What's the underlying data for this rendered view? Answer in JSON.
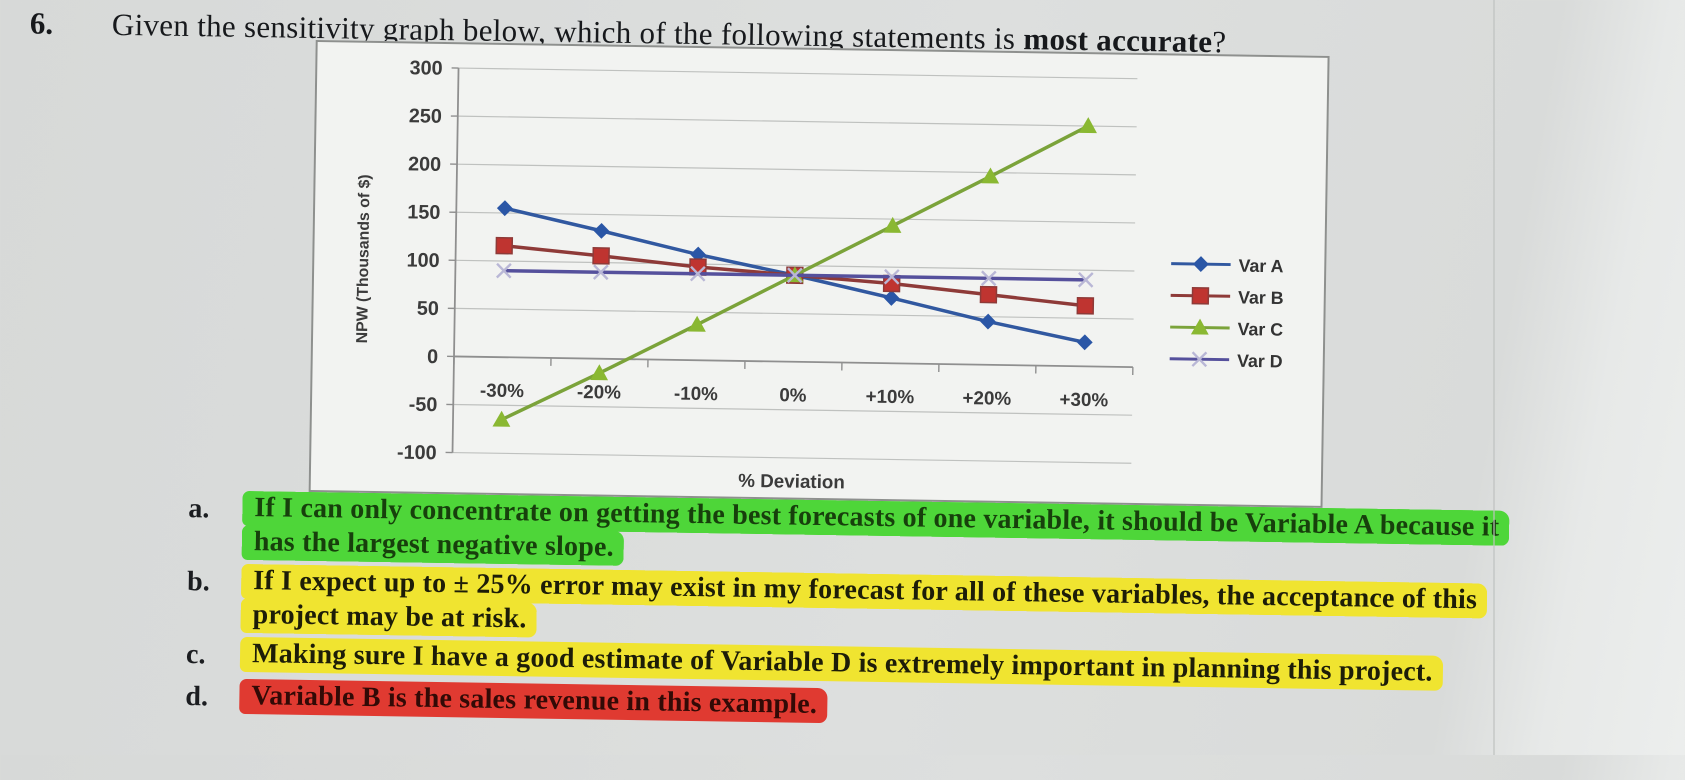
{
  "page": {
    "question_number": "6.",
    "question_text_prefix": "Given the sensitivity graph below, which of the following statements is ",
    "question_text_bold": "most accurate",
    "question_text_suffix": "?"
  },
  "chart_data": {
    "type": "line",
    "title": "",
    "xlabel": "% Deviation",
    "ylabel": "NPW (Thousands of $)",
    "categories": [
      "-30%",
      "-20%",
      "-10%",
      "0%",
      "+10%",
      "+20%",
      "+30%"
    ],
    "x_values": [
      -30,
      -20,
      -10,
      0,
      10,
      20,
      30
    ],
    "y_ticks": [
      300,
      250,
      200,
      150,
      100,
      50,
      0,
      -50,
      -100
    ],
    "ylim": [
      -100,
      300
    ],
    "grid": true,
    "legend_position": "right",
    "series": [
      {
        "name": "Var A",
        "marker": "diamond",
        "color": "#3158a0",
        "marker_color": "#2a56a6",
        "values": [
          155,
          133,
          110,
          90,
          68,
          45,
          25
        ]
      },
      {
        "name": "Var B",
        "marker": "square",
        "color": "#8e3a38",
        "marker_color": "#bf3430",
        "values": [
          116,
          107,
          97,
          90,
          83,
          73,
          63
        ]
      },
      {
        "name": "Var C",
        "marker": "triangle",
        "color": "#7ba33a",
        "marker_color": "#8ab832",
        "values": [
          -65,
          -15,
          37,
          90,
          143,
          196,
          250
        ]
      },
      {
        "name": "Var D",
        "marker": "x",
        "color": "#55509c",
        "marker_color": "#b9b7d6",
        "values": [
          90,
          90,
          90,
          90,
          90,
          90,
          90
        ]
      }
    ],
    "axis_text_color": "#3b3b3b",
    "grid_color": "#bfc1bf",
    "axis_line_color": "#8f8f8f"
  },
  "options": [
    {
      "letter": "a.",
      "highlight": "#4ed639",
      "text_color": "#17400c",
      "text": "If I can only concentrate on getting the best forecasts of one variable, it should be Variable A because it has the largest negative slope."
    },
    {
      "letter": "b.",
      "highlight": "#f0e430",
      "text_color": "#1d1d08",
      "text": "If I expect up to ± 25% error may exist in my forecast for all of these variables, the acceptance of this project may be at risk."
    },
    {
      "letter": "c.",
      "highlight": "#f0e430",
      "text_color": "#1d1d08",
      "text": "Making sure I have a good estimate of Variable D is extremely important in planning this project."
    },
    {
      "letter": "d.",
      "highlight": "#e03a31",
      "text_color": "#320a06",
      "text": "Variable B is the sales revenue in this example."
    }
  ]
}
